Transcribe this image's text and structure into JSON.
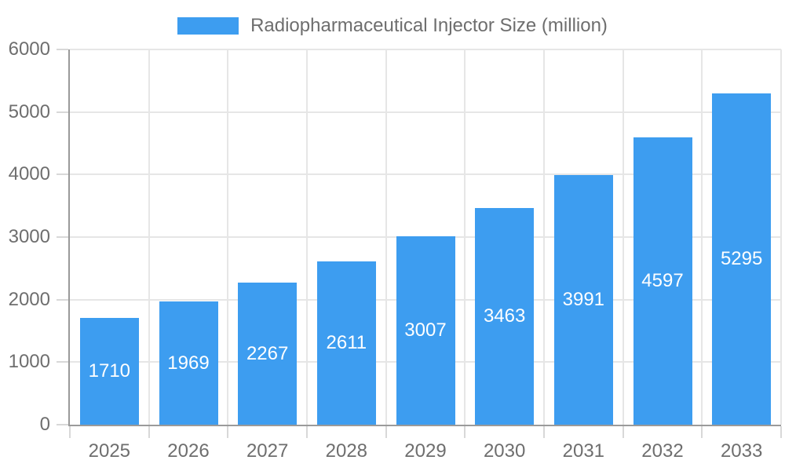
{
  "chart_data": {
    "type": "bar",
    "title": "Radiopharmaceutical Injector Size (million)",
    "categories": [
      "2025",
      "2026",
      "2027",
      "2028",
      "2029",
      "2030",
      "2031",
      "2032",
      "2033"
    ],
    "values": [
      1710,
      1969,
      2267,
      2611,
      3007,
      3463,
      3991,
      4597,
      5295
    ],
    "series": [
      {
        "name": "Radiopharmaceutical Injector Size (million)",
        "values": [
          1710,
          1969,
          2267,
          2611,
          3007,
          3463,
          3991,
          4597,
          5295
        ]
      }
    ],
    "xlabel": "",
    "ylabel": "",
    "ylim": [
      0,
      6000
    ],
    "ytick_step": 1000,
    "ytick_labels": [
      "0",
      "1000",
      "2000",
      "3000",
      "4000",
      "5000",
      "6000"
    ],
    "grid": true,
    "legend_position": "top-center",
    "value_labels": "inside-center",
    "colors": {
      "bar": "#3D9DF0",
      "axis_line": "#9a9a9a",
      "gridline": "#e6e6e6",
      "tick": "#d8d8d8",
      "axis_text": "#6e6e6e",
      "value_text": "#ffffff"
    }
  }
}
